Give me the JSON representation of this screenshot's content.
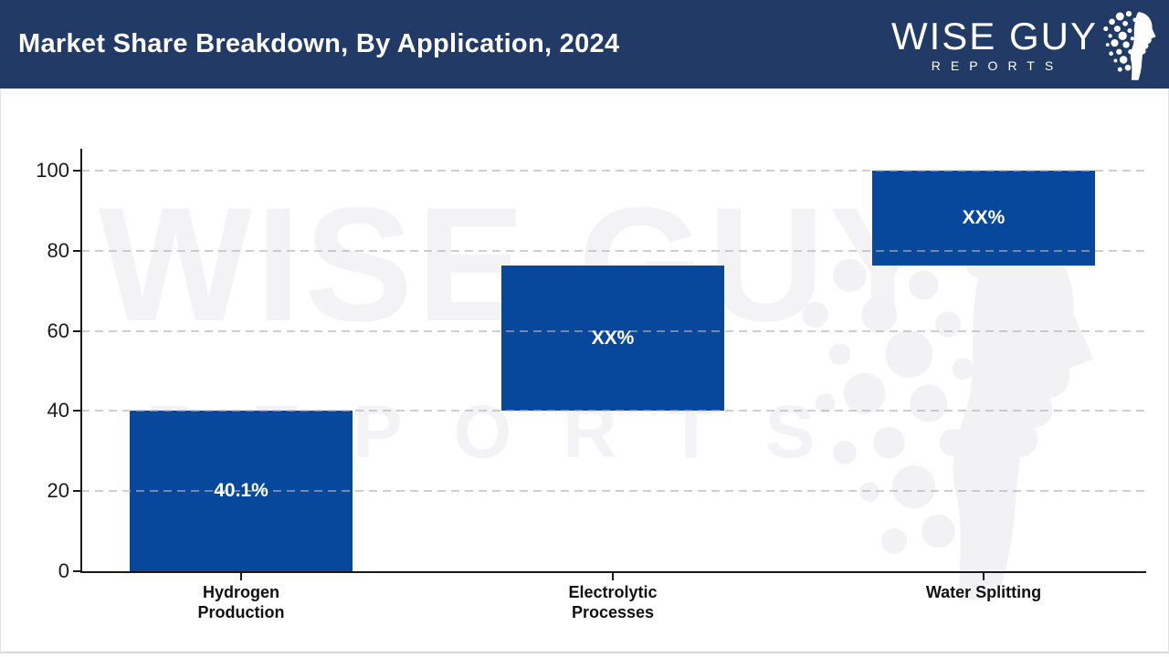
{
  "header": {
    "title": "Market Share Breakdown, By Application, 2024",
    "logo": {
      "line1": "WISE GUY",
      "line2": "REPORTS"
    }
  },
  "watermark": {
    "line1": "WISE GUY",
    "line2": "REPORTS"
  },
  "colors": {
    "header_bg": "#213a66",
    "bar": "#08489c",
    "axis": "#1a1a1a",
    "grid": "#d9d9d9",
    "bar_label": "#ffffff",
    "watermark": "#f3f3f5"
  },
  "chart_data": {
    "type": "bar",
    "subtype": "waterfall",
    "title": "Market Share Breakdown, By Application, 2024",
    "categories": [
      "Hydrogen\nProduction",
      "Electrolytic\nProcesses",
      "Water Splitting"
    ],
    "bars": [
      {
        "category": "Hydrogen Production",
        "start": 0,
        "end": 40.1,
        "label": "40.1%"
      },
      {
        "category": "Electrolytic Processes",
        "start": 40.1,
        "end": 76.3,
        "label": "XX%"
      },
      {
        "category": "Water Splitting",
        "start": 76.3,
        "end": 100,
        "label": "XX%"
      }
    ],
    "ylim": [
      0,
      100
    ],
    "yticks": [
      0,
      20,
      40,
      60,
      80,
      100
    ],
    "xlabel": "",
    "ylabel": "",
    "grid": "horizontal-dashed",
    "legend": null
  }
}
